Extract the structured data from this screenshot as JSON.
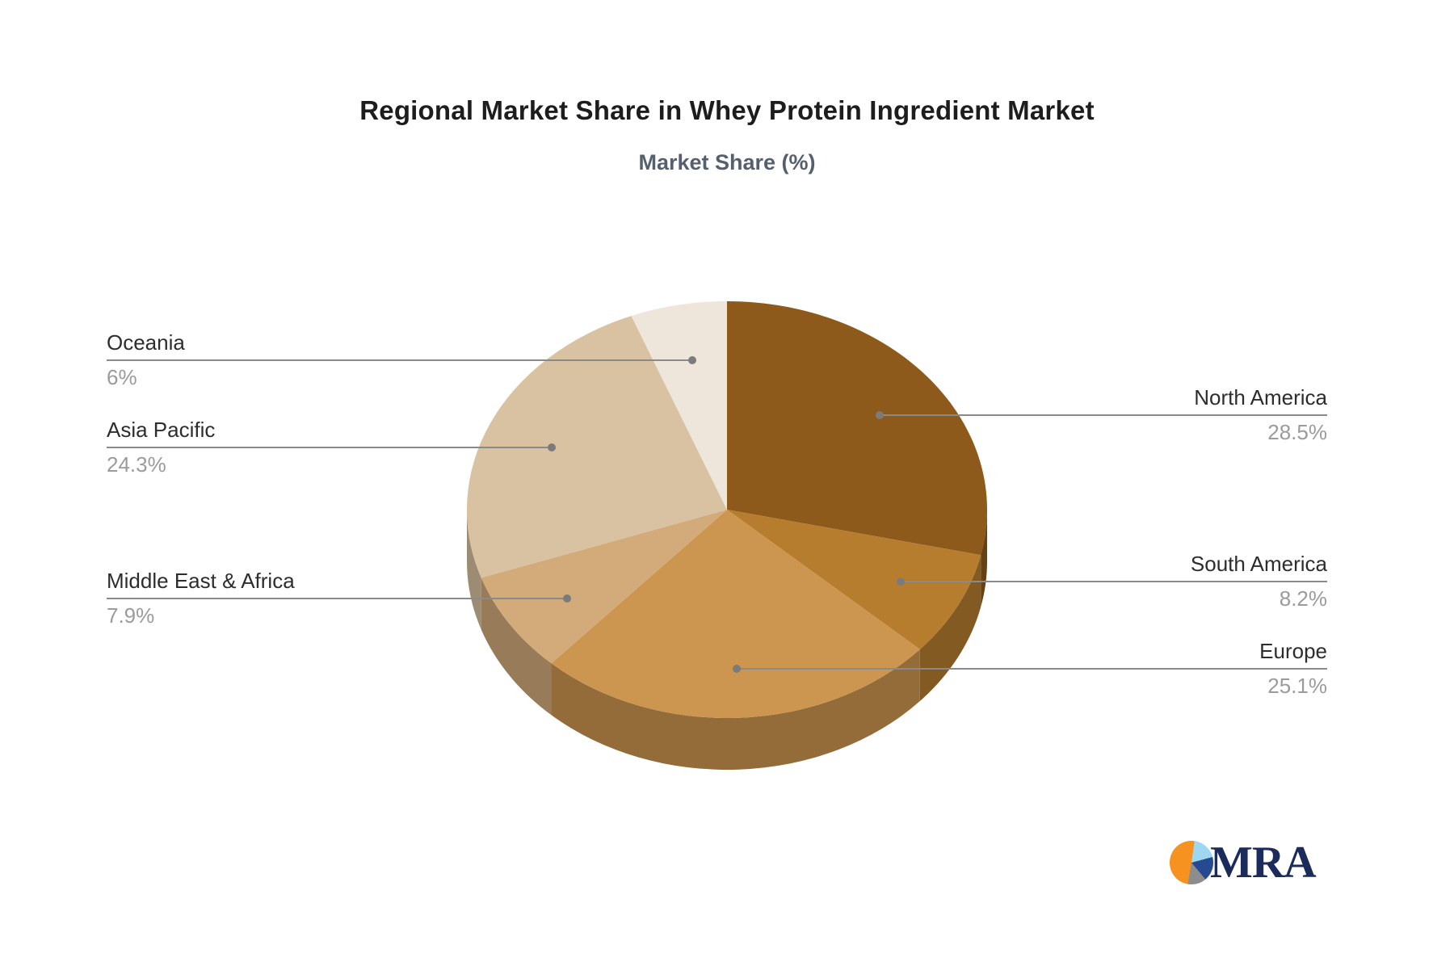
{
  "title": "Regional Market Share in Whey Protein Ingredient Market",
  "subtitle": "Market Share (%)",
  "chart_data": {
    "type": "pie",
    "is_3d": true,
    "start_angle": "12 o'clock",
    "direction": "clockwise",
    "legend_position": "callout-labels",
    "grid": false,
    "slices": [
      {
        "label": "North America",
        "value": 28.5,
        "value_text": "28.5%",
        "color": "#8E5A1C",
        "label_side": "right"
      },
      {
        "label": "South America",
        "value": 8.2,
        "value_text": "8.2%",
        "color": "#B67D2F",
        "label_side": "right"
      },
      {
        "label": "Europe",
        "value": 25.1,
        "value_text": "25.1%",
        "color": "#CC9651",
        "label_side": "right"
      },
      {
        "label": "Middle East & Africa",
        "value": 7.9,
        "value_text": "7.9%",
        "color": "#D3AB7A",
        "label_side": "left"
      },
      {
        "label": "Asia Pacific",
        "value": 24.3,
        "value_text": "24.3%",
        "color": "#D9C2A1",
        "label_side": "left"
      },
      {
        "label": "Oceania",
        "value": 6.0,
        "value_text": "6%",
        "color": "#EEE5DB",
        "label_side": "left"
      }
    ],
    "connector_color": "#8a8a8a",
    "label_color": "#2d2d2d",
    "value_color": "#9b9b9b"
  },
  "logo": {
    "text": "MRA",
    "text_color": "#1b2b5c",
    "pie_colors": [
      "#f6921f",
      "#9ed7f0",
      "#264a92",
      "#8d8d8d"
    ]
  }
}
